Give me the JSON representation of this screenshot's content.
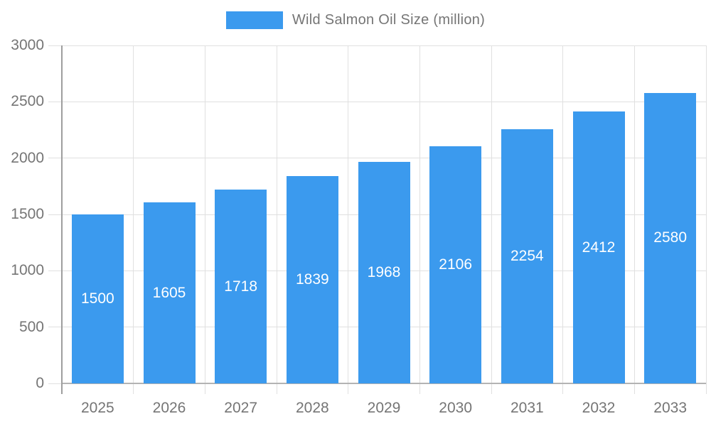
{
  "chart_data": {
    "type": "bar",
    "title": "",
    "legend": "Wild Salmon Oil Size (million)",
    "legend_position": "top",
    "categories": [
      "2025",
      "2026",
      "2027",
      "2028",
      "2029",
      "2030",
      "2031",
      "2032",
      "2033"
    ],
    "values": [
      1500,
      1605,
      1718,
      1839,
      1968,
      2106,
      2254,
      2412,
      2580
    ],
    "xlabel": "",
    "ylabel": "",
    "ylim": [
      0,
      3000
    ],
    "yticks": [
      "0",
      "500",
      "1000",
      "1500",
      "2000",
      "2500",
      "3000"
    ],
    "grid": true,
    "value_labels_inside_bars": true,
    "colors": {
      "bar": "#3b9aee",
      "axis_text": "#757575",
      "gridline": "#e0e0e0",
      "y_axis_line": "#9e9e9e",
      "x_axis_line": "#b3b3b3",
      "value_label": "#ffffff",
      "background": "#ffffff"
    }
  }
}
